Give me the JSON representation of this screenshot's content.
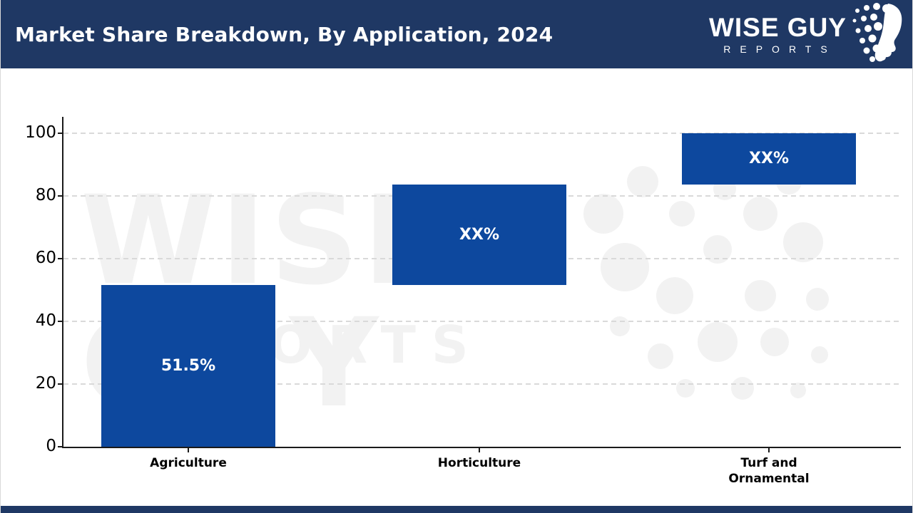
{
  "header": {
    "title": "Market Share Breakdown, By Application, 2024",
    "logo": {
      "line1": "WISE GUY",
      "line2": "REPORTS",
      "head_icon": "dotted-face-profile-icon"
    }
  },
  "watermark": {
    "line1": "WISE GUY",
    "line2": "REPORTS",
    "head_icon": "dotted-face-profile-watermark"
  },
  "colors": {
    "header_bg": "#1f3864",
    "footer_bg": "#1f3864",
    "bar_blue": "#0d489e",
    "axis": "#1a1a1a",
    "gridline": "#d9d9d9",
    "watermark": "#f2f2f2",
    "bar_label": "#ffffff",
    "tick_text": "#000000"
  },
  "chart_data": {
    "type": "bar",
    "subtype": "waterfall",
    "title": "Market Share Breakdown, By Application, 2024",
    "categories": [
      "Agriculture",
      "Horticulture",
      "Turf and Ornamental"
    ],
    "categories_display": [
      "Agriculture",
      "Horticulture",
      "Turf and\nOrnamental"
    ],
    "bars": [
      {
        "category": "Agriculture",
        "start": 0,
        "end": 51.5,
        "label": "51.5%"
      },
      {
        "category": "Horticulture",
        "start": 51.5,
        "end": 83.5,
        "label": "XX%"
      },
      {
        "category": "Turf and Ornamental",
        "start": 83.5,
        "end": 100,
        "label": "XX%"
      }
    ],
    "xlabel": "",
    "ylabel": "",
    "ylim": [
      0,
      100
    ],
    "yticks": [
      0,
      20,
      40,
      60,
      80,
      100
    ],
    "grid": {
      "horizontal": true,
      "style": "dashed",
      "color": "#d9d9d9"
    },
    "bar_color": "#0d489e",
    "bar_label_color": "#ffffff",
    "legend": null
  }
}
